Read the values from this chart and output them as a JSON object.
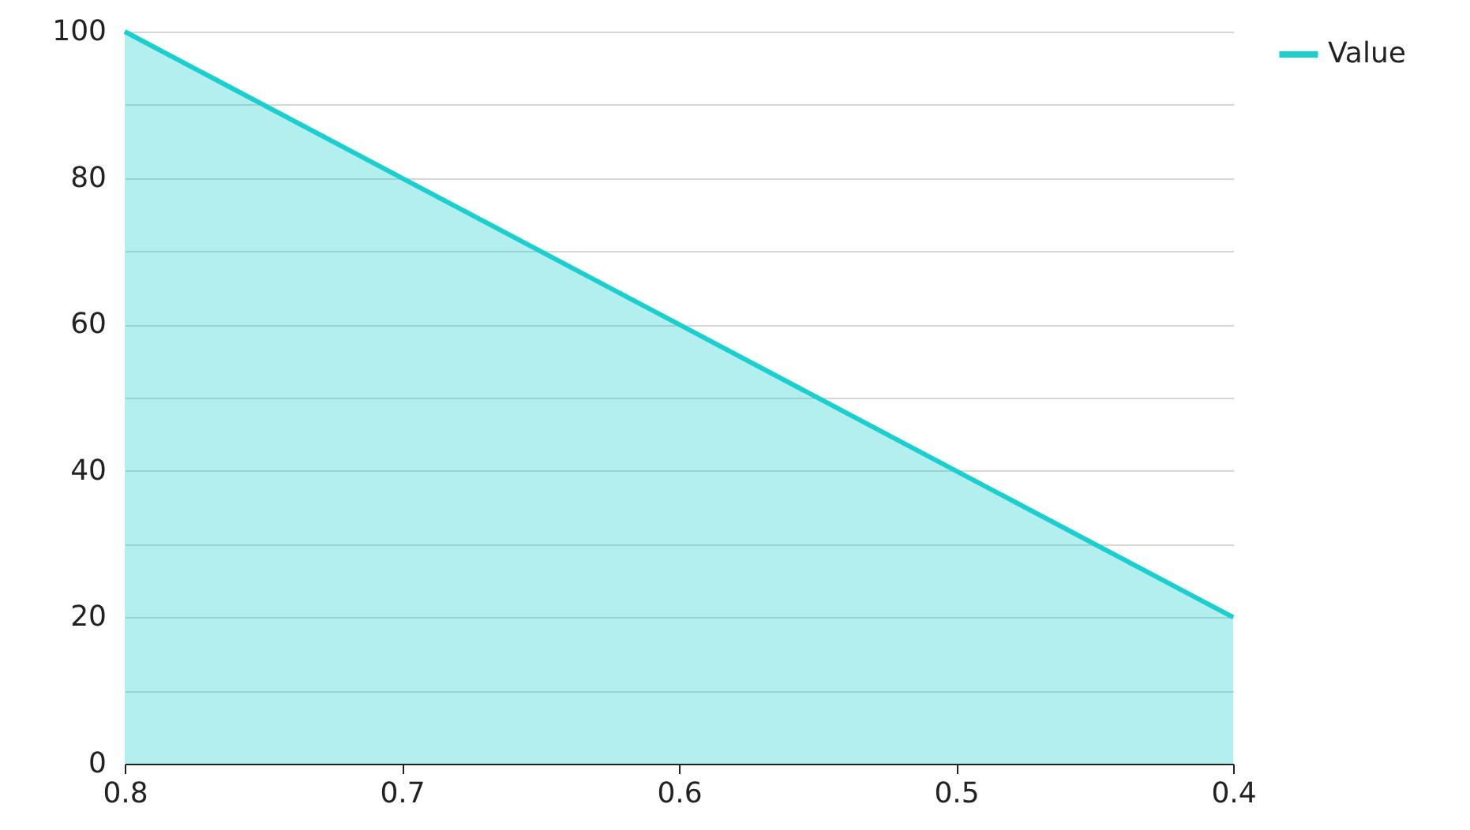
{
  "chart_data": {
    "type": "area",
    "x": [
      0.8,
      0.7,
      0.6,
      0.5,
      0.4
    ],
    "series": [
      {
        "name": "Value",
        "color": "#1ccfcf",
        "values": [
          100,
          80,
          60,
          40,
          20
        ]
      }
    ],
    "xlim": [
      0.8,
      0.4
    ],
    "xticks": [
      0.8,
      0.7,
      0.6,
      0.5,
      0.4
    ],
    "ylim": [
      0,
      100
    ],
    "yticks": [
      0,
      {
        "value": 10,
        "label": null
      },
      20,
      {
        "value": 30,
        "label": null
      },
      40,
      {
        "value": 50,
        "label": null
      },
      60,
      {
        "value": 70,
        "label": null
      },
      80,
      {
        "value": 90,
        "label": null
      },
      100
    ],
    "grid": "y",
    "legend": "top right",
    "marker": "none"
  }
}
